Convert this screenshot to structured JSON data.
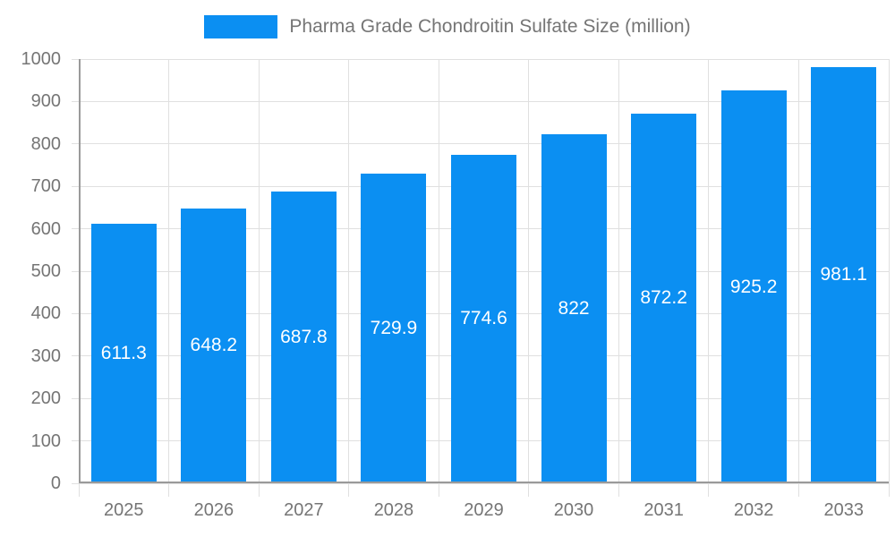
{
  "chart_data": {
    "type": "bar",
    "series_name": "Pharma Grade Chondroitin Sulfate Size (million)",
    "categories": [
      "2025",
      "2026",
      "2027",
      "2028",
      "2029",
      "2030",
      "2031",
      "2032",
      "2033"
    ],
    "values": [
      611.3,
      648.2,
      687.8,
      729.9,
      774.6,
      822,
      872.2,
      925.2,
      981.1
    ],
    "value_labels": [
      "611.3",
      "648.2",
      "687.8",
      "729.9",
      "774.6",
      "822",
      "872.2",
      "925.2",
      "981.1"
    ],
    "ylim": [
      0,
      1000
    ],
    "ytick_step": 100,
    "yticks": [
      0,
      100,
      200,
      300,
      400,
      500,
      600,
      700,
      800,
      900,
      1000
    ],
    "grid": true,
    "legend_position": "top",
    "colors": {
      "bar": "#0b8ff2",
      "grid": "#e0e0e0",
      "axis_line": "#9a9a9a",
      "axis_text": "#757575",
      "legend_text": "#757575",
      "bar_label_text": "#ffffff",
      "background": "#ffffff"
    }
  }
}
